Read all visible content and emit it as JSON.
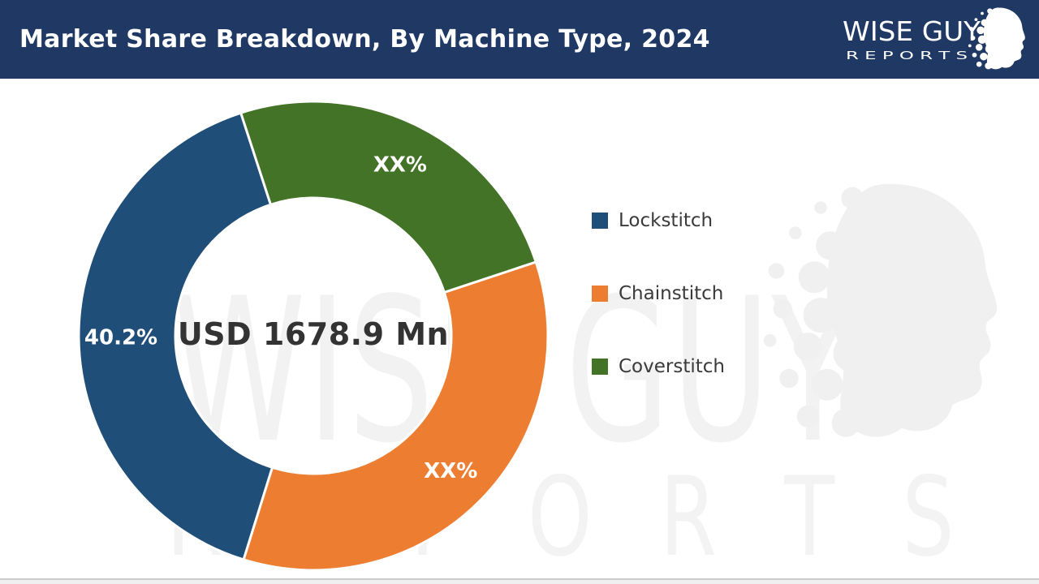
{
  "header": {
    "title": "Market Share Breakdown, By Machine Type, 2024",
    "logo": {
      "line1": "WISE GUY",
      "line2": "R E P O R T S"
    }
  },
  "watermark": {
    "line1": "WISE GUY",
    "line2": "R E P O R T S"
  },
  "chart_data": {
    "type": "pie",
    "variant": "donut",
    "title": "Market Share Breakdown, By Machine Type, 2024",
    "center_label": "USD 1678.9 Mn",
    "start_angle_deg": 108,
    "direction": "counterclockwise",
    "legend_position": "right",
    "series": [
      {
        "name": "Lockstitch",
        "value": 40.2,
        "display_label": "40.2%",
        "color": "#1F4E79"
      },
      {
        "name": "Chainstitch",
        "value": 34.9,
        "display_label": "XX%",
        "color": "#ED7D31"
      },
      {
        "name": "Coverstitch",
        "value": 24.9,
        "display_label": "XX%",
        "color": "#427326"
      }
    ],
    "colors": {
      "label_text": "#FFFFFF",
      "center_text": "#333333",
      "separator": "#FFFFFF"
    }
  }
}
